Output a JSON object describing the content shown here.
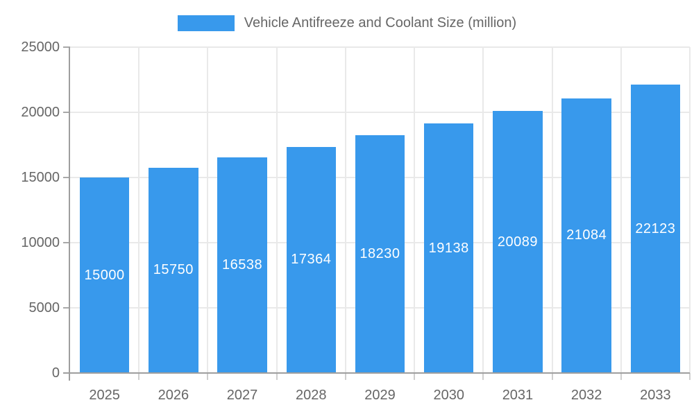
{
  "chart_data": {
    "type": "bar",
    "title": "Vehicle Antifreeze and Coolant Size (million)",
    "categories": [
      "2025",
      "2026",
      "2027",
      "2028",
      "2029",
      "2030",
      "2031",
      "2032",
      "2033"
    ],
    "values": [
      15000,
      15750,
      16538,
      17364,
      18230,
      19138,
      20089,
      21084,
      22123
    ],
    "xlabel": "",
    "ylabel": "",
    "ylim": [
      0,
      25000
    ],
    "y_tick_step": 5000,
    "y_tick_labels": [
      "0",
      "5000",
      "10000",
      "15000",
      "20000",
      "25000"
    ],
    "grid": true,
    "legend_position": "top",
    "colors": {
      "bar": "#3899EC",
      "bar_value_label": "#ffffff",
      "axis_text": "#666666",
      "gridline": "#e9e9e9",
      "axis_line": "#9e9e9e",
      "y_tick_mark": "#a8a8a8",
      "x_tick_mark": "#cfcfcf",
      "background": "#ffffff"
    }
  }
}
